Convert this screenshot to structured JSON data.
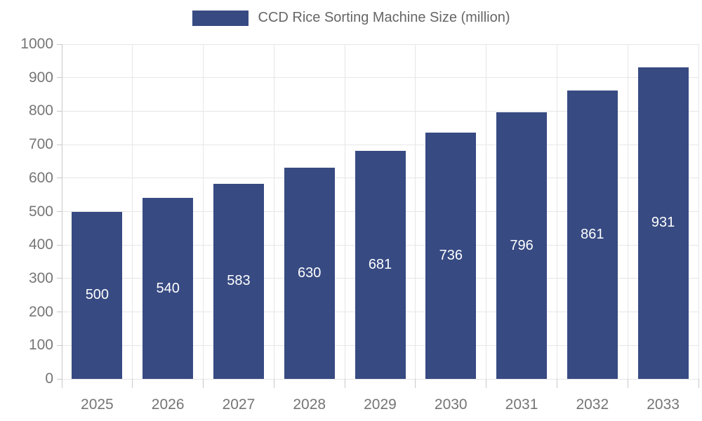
{
  "chart_data": {
    "type": "bar",
    "title": "CCD Rice Sorting Machine Size (million)",
    "legend": [
      "CCD Rice Sorting Machine Size (million)"
    ],
    "legend_position": "top-center",
    "categories": [
      "2025",
      "2026",
      "2027",
      "2028",
      "2029",
      "2030",
      "2031",
      "2032",
      "2033"
    ],
    "values": [
      500,
      540,
      583,
      630,
      681,
      736,
      796,
      861,
      931
    ],
    "xlabel": "",
    "ylabel": "",
    "ylim": [
      0,
      1000
    ],
    "yticks": [
      0,
      100,
      200,
      300,
      400,
      500,
      600,
      700,
      800,
      900,
      1000
    ],
    "grid": true,
    "value_label_position": "inside-center",
    "colors": {
      "bar": "#374a82",
      "value_label": "#ffffff",
      "tick_label": "#757575",
      "legend_text": "#666666",
      "gridline": "#e6e6e6",
      "axis_line": "#c9c9c9",
      "background": "#ffffff"
    }
  }
}
